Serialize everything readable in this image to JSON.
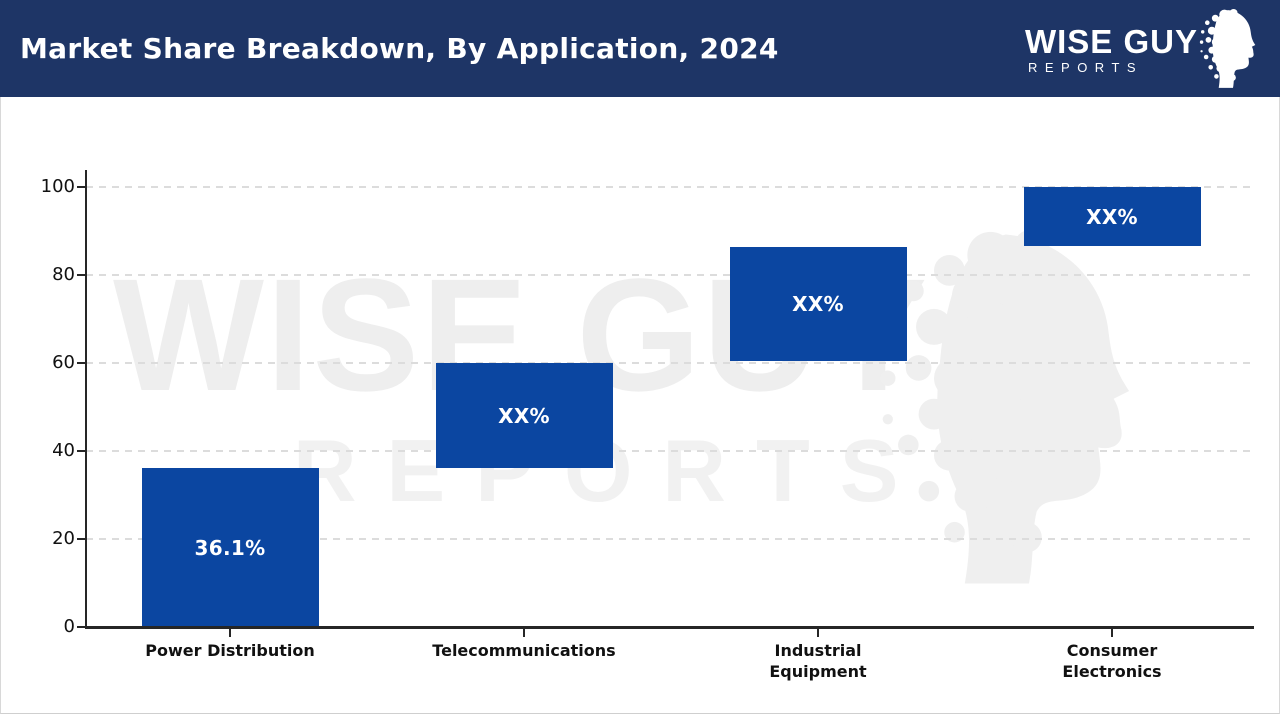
{
  "header": {
    "title": "Market Share Breakdown, By Application, 2024",
    "bg_color": "#1e3566",
    "logo": {
      "line1": "WISE GUY",
      "line2": "REPORTS"
    }
  },
  "watermark": {
    "line1": "WISE GUY",
    "line2": "REPORTS"
  },
  "chart_data": {
    "type": "bar",
    "variant": "waterfall",
    "title": "Market Share Breakdown, By Application, 2024",
    "categories": [
      "Power Distribution",
      "Telecommunications",
      "Industrial Equipment",
      "Consumer Electronics"
    ],
    "category_lines": [
      [
        "Power Distribution"
      ],
      [
        "Telecommunications"
      ],
      [
        "Industrial",
        "Equipment"
      ],
      [
        "Consumer",
        "Electronics"
      ]
    ],
    "segments": [
      {
        "category": "Power Distribution",
        "start": 0,
        "end": 36.1,
        "label": "36.1%"
      },
      {
        "category": "Telecommunications",
        "start": 36.1,
        "end": 60.0,
        "label": "XX%"
      },
      {
        "category": "Industrial Equipment",
        "start": 60.5,
        "end": 86.4,
        "label": "XX%"
      },
      {
        "category": "Consumer Electronics",
        "start": 86.5,
        "end": 100,
        "label": "XX%"
      }
    ],
    "ylim": [
      0,
      100
    ],
    "yticks": [
      0,
      20,
      40,
      60,
      80,
      100
    ],
    "xlabel": "",
    "ylabel": "",
    "grid": true,
    "grid_style": "dashed-horizontal",
    "legend": false,
    "bar_color": "#0b46a1",
    "bar_label_color": "#ffffff",
    "axis_color": "#262626"
  }
}
